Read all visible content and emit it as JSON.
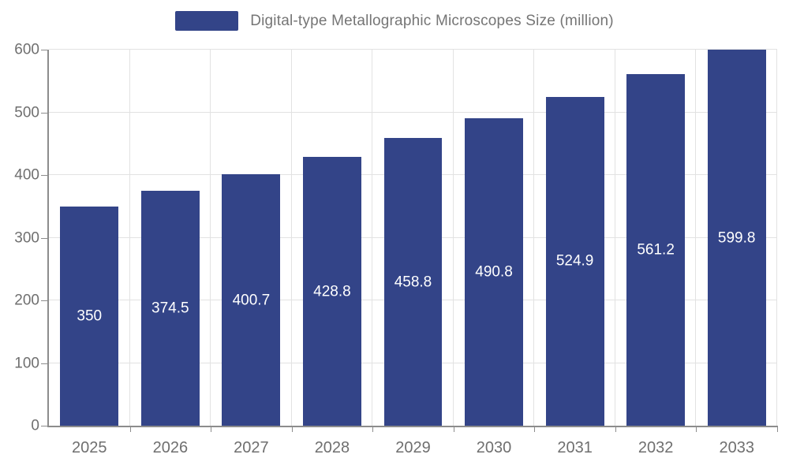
{
  "chart_data": {
    "type": "bar",
    "title": "Digital-type Metallographic Microscopes Size (million)",
    "categories": [
      "2025",
      "2026",
      "2027",
      "2028",
      "2029",
      "2030",
      "2031",
      "2032",
      "2033"
    ],
    "values": [
      350,
      374.5,
      400.7,
      428.8,
      458.8,
      490.8,
      524.9,
      561.2,
      599.8
    ],
    "value_labels": [
      "350",
      "374.5",
      "400.7",
      "428.8",
      "458.8",
      "490.8",
      "524.9",
      "561.2",
      "599.8"
    ],
    "xlabel": "",
    "ylabel": "",
    "ylim": [
      0,
      600
    ],
    "yticks": [
      0,
      100,
      200,
      300,
      400,
      500,
      600
    ],
    "grid": true,
    "legend_position": "top",
    "colors": {
      "bar": "#334488",
      "bar_label": "#ffffff",
      "grid": "#e2e2e2",
      "axis": "#8c8c8c",
      "tick_text": "#6f6f6f",
      "title_text": "#757575",
      "background": "#ffffff"
    }
  }
}
